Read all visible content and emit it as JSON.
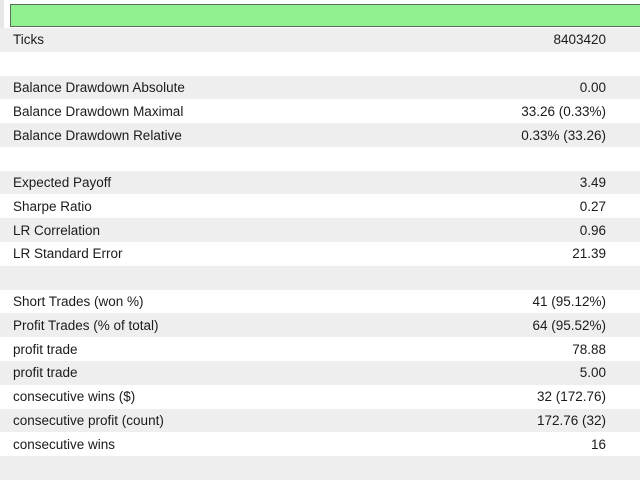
{
  "progress_bar": {
    "fill_color": "#90f090",
    "border_color": "#5c6e5c",
    "value_percent": 100
  },
  "report": {
    "colors": {
      "row_shade": "#eeeeee",
      "text": "#1b1b1b"
    },
    "rows": [
      {
        "label": "Ticks",
        "value": "8403420"
      },
      {
        "spacer": true,
        "label": "",
        "value": ""
      },
      {
        "label": "Balance Drawdown Absolute",
        "value": "0.00"
      },
      {
        "label": "Balance Drawdown Maximal",
        "value": "33.26 (0.33%)"
      },
      {
        "label": "Balance Drawdown Relative",
        "value": "0.33% (33.26)"
      },
      {
        "spacer": true,
        "label": "",
        "value": ""
      },
      {
        "label": "Expected Payoff",
        "value": "3.49"
      },
      {
        "label": "Sharpe Ratio",
        "value": "0.27"
      },
      {
        "label": "LR Correlation",
        "value": "0.96"
      },
      {
        "label": "LR Standard Error",
        "value": "21.39"
      },
      {
        "spacer": true,
        "label": "",
        "value": ""
      },
      {
        "label": "Short Trades (won %)",
        "value": "41 (95.12%)"
      },
      {
        "label": "Profit Trades (% of total)",
        "value": "64 (95.52%)"
      },
      {
        "label": "profit trade",
        "value": "78.88"
      },
      {
        "label": "profit trade",
        "value": "5.00"
      },
      {
        "label": "consecutive wins ($)",
        "value": "32 (172.76)"
      },
      {
        "label": "consecutive profit (count)",
        "value": "172.76 (32)"
      },
      {
        "label": "consecutive wins",
        "value": "16"
      },
      {
        "spacer": true,
        "label": "",
        "value": ""
      }
    ]
  }
}
